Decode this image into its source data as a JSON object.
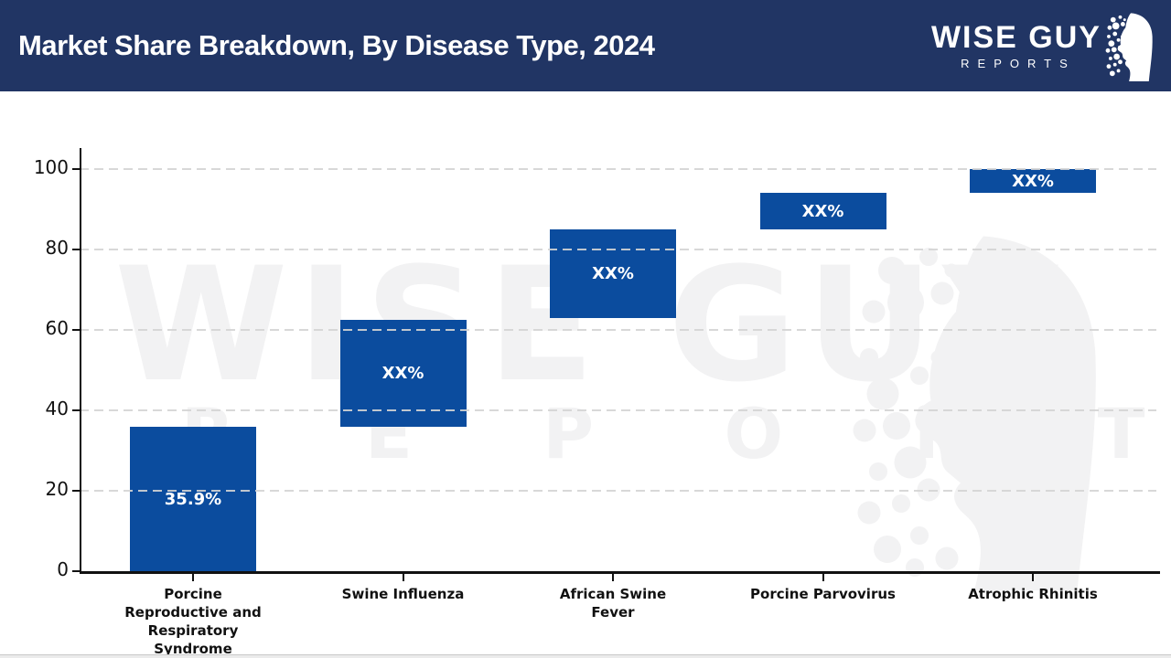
{
  "header": {
    "title": "Market Share Breakdown, By Disease Type, 2024",
    "logo": {
      "line1": "WISE GUY",
      "line2": "REPORTS"
    }
  },
  "watermark": {
    "line1": "WISE GUY",
    "line2": "R E P O R T S"
  },
  "colors": {
    "header_bg": "#213564",
    "bar": "#0b4c9e",
    "gridline": "#d9d9d9",
    "axis": "#111111",
    "watermark": "#f2f2f3",
    "label_on_bar": "#ffffff"
  },
  "chart_data": {
    "type": "bar",
    "subtype": "floating-waterfall",
    "title": "Market Share Breakdown, By Disease Type, 2024",
    "xlabel": "",
    "ylabel": "",
    "legend": "none",
    "grid": "horizontal-dashed",
    "ylim": [
      0,
      105.2
    ],
    "yticks": [
      0,
      20,
      40,
      60,
      80,
      100
    ],
    "categories": [
      "Porcine Reproductive and Respiratory Syndrome",
      "Swine Influenza",
      "African Swine Fever",
      "Porcine Parvovirus",
      "Atrophic Rhinitis"
    ],
    "category_lines": [
      [
        "Porcine",
        "Reproductive and",
        "Respiratory",
        "Syndrome"
      ],
      [
        "Swine Influenza"
      ],
      [
        "African Swine",
        "Fever"
      ],
      [
        "Porcine Parvovirus"
      ],
      [
        "Atrophic Rhinitis"
      ]
    ],
    "segments": [
      {
        "category": "Porcine Reproductive and Respiratory Syndrome",
        "start": 0,
        "end": 35.9,
        "label": "35.9%"
      },
      {
        "category": "Swine Influenza",
        "start": 35.9,
        "end": 62.5,
        "label": "XX%"
      },
      {
        "category": "African Swine Fever",
        "start": 63,
        "end": 85,
        "label": "XX%"
      },
      {
        "category": "Porcine Parvovirus",
        "start": 85,
        "end": 94,
        "label": "XX%"
      },
      {
        "category": "Atrophic Rhinitis",
        "start": 94,
        "end": 100,
        "label": "XX%"
      }
    ]
  }
}
